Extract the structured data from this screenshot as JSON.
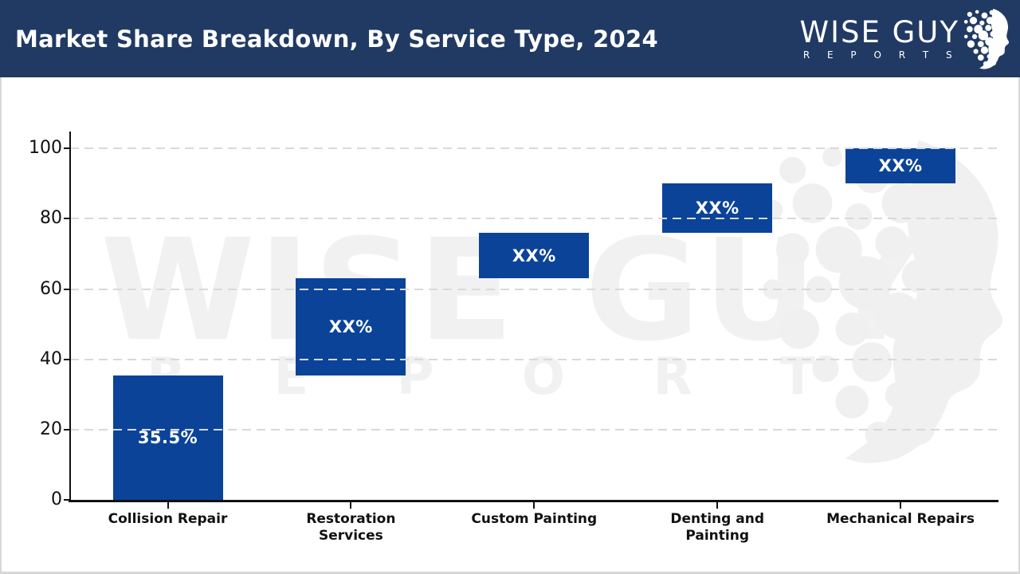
{
  "header": {
    "title": "Market Share Breakdown, By Service Type, 2024",
    "logo_line1": "WISE GUY",
    "logo_line2": "R E P O R T S"
  },
  "watermark": {
    "line1": "WISE GUY",
    "line2": "R E P O R T S"
  },
  "colors": {
    "header_bg": "#213A63",
    "bar": "#0B4399",
    "bar_label": "#FFFFFF",
    "grid": "#D9D9D9",
    "axis": "#111111",
    "watermark": "#F0F0F1"
  },
  "chart_data": {
    "type": "bar",
    "subtype": "waterfall",
    "title": "Market Share Breakdown, By Service Type, 2024",
    "unit": "%",
    "categories": [
      "Collision Repair",
      "Restoration Services",
      "Custom Painting",
      "Denting and Painting",
      "Mechanical Repairs"
    ],
    "category_label_lines": [
      [
        "Collision Repair"
      ],
      [
        "Restoration",
        "Services"
      ],
      [
        "Custom Painting"
      ],
      [
        "Denting and",
        "Painting"
      ],
      [
        "Mechanical Repairs"
      ]
    ],
    "bars": [
      {
        "category": "Collision Repair",
        "start": 0,
        "end": 35.5,
        "value": 35.5,
        "label": "35.5%"
      },
      {
        "category": "Restoration Services",
        "start": 35.5,
        "end": 63,
        "value": 27.5,
        "label": "XX%"
      },
      {
        "category": "Custom Painting",
        "start": 63,
        "end": 76,
        "value": 13,
        "label": "XX%"
      },
      {
        "category": "Denting and Painting",
        "start": 76,
        "end": 90,
        "value": 14,
        "label": "XX%"
      },
      {
        "category": "Mechanical Repairs",
        "start": 90,
        "end": 100,
        "value": 10,
        "label": "XX%"
      }
    ],
    "yticks": [
      0,
      20,
      40,
      60,
      80,
      100
    ],
    "ylim": [
      0,
      105
    ],
    "grid": "horizontal-dashed",
    "legend": null
  }
}
